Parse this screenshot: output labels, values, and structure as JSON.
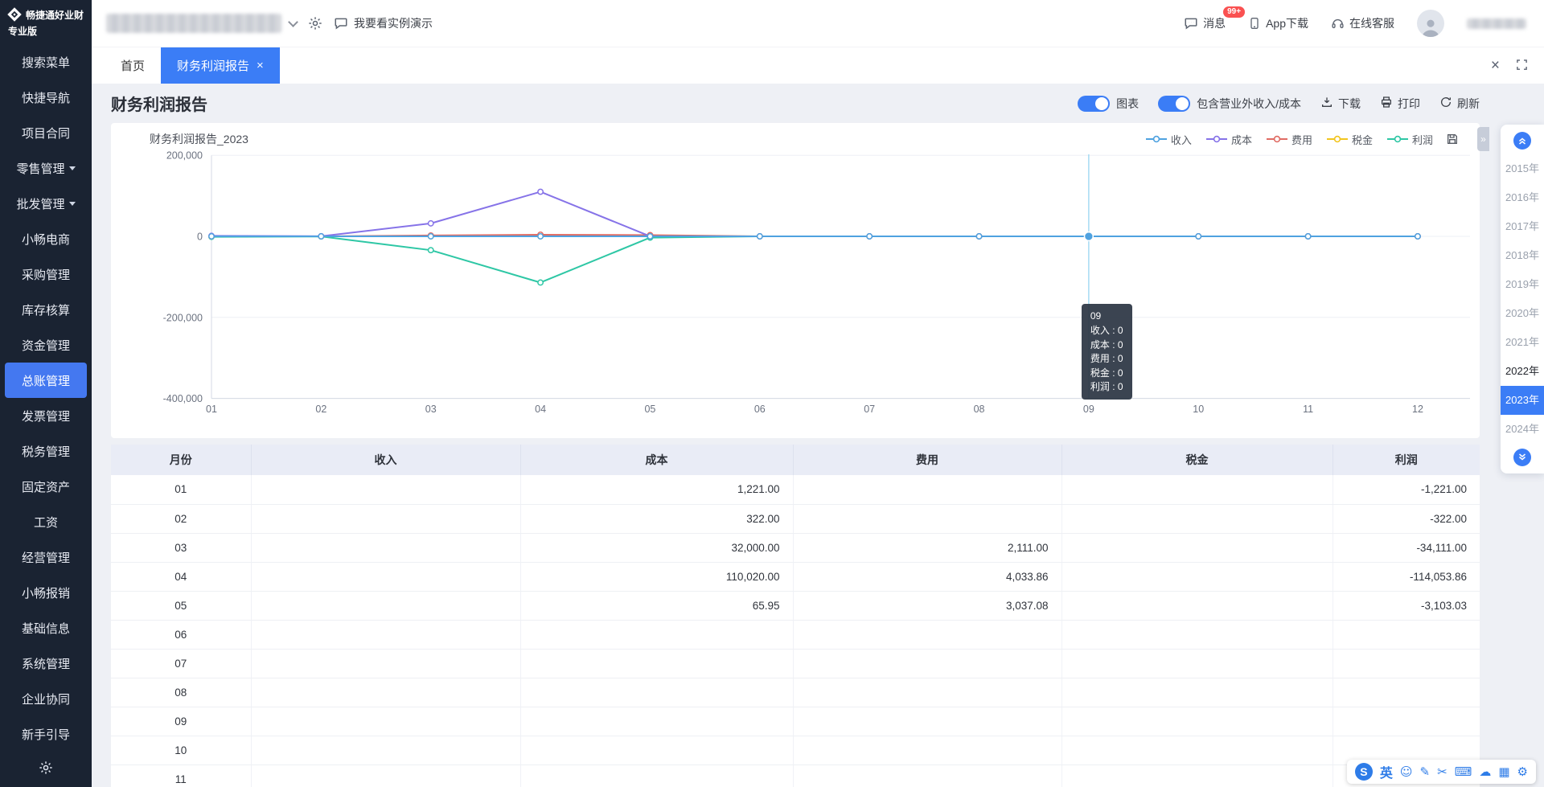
{
  "colors": {
    "accent": "#3b7df6",
    "sidebar_bg": "#1a2332",
    "sidebar_active": "#4478f0",
    "badge_red": "#fa5151",
    "tooltip_bg": "#2c3644"
  },
  "logo": {
    "line1": "畅捷通好业财",
    "line2": "专业版"
  },
  "sidebar": {
    "items": [
      {
        "id": "search-menu",
        "label": "搜索菜单"
      },
      {
        "id": "quick-nav",
        "label": "快捷导航"
      },
      {
        "id": "project-contract",
        "label": "项目合同"
      },
      {
        "id": "retail-mgmt",
        "label": "零售管理",
        "arrow": true
      },
      {
        "id": "wholesale-mgmt",
        "label": "批发管理",
        "arrow": true
      },
      {
        "id": "xiaochang-ecommerce",
        "label": "小畅电商"
      },
      {
        "id": "purchase-mgmt",
        "label": "采购管理"
      },
      {
        "id": "inventory-accounting",
        "label": "库存核算"
      },
      {
        "id": "funds-mgmt",
        "label": "资金管理"
      },
      {
        "id": "general-ledger",
        "label": "总账管理",
        "active": true
      },
      {
        "id": "invoice-mgmt",
        "label": "发票管理"
      },
      {
        "id": "tax-mgmt",
        "label": "税务管理"
      },
      {
        "id": "fixed-assets",
        "label": "固定资产"
      },
      {
        "id": "payroll",
        "label": "工资"
      },
      {
        "id": "operations-mgmt",
        "label": "经营管理"
      },
      {
        "id": "xiaochang-expense",
        "label": "小畅报销"
      },
      {
        "id": "basic-info",
        "label": "基础信息"
      },
      {
        "id": "system-mgmt",
        "label": "系统管理"
      },
      {
        "id": "enterprise-collab",
        "label": "企业协同"
      },
      {
        "id": "beginner-guide",
        "label": "新手引导"
      }
    ]
  },
  "topbar": {
    "demo_label": "我要看实例演示",
    "messages_label": "消息",
    "messages_badge": "99+",
    "app_download_label": "App下载",
    "online_support_label": "在线客服"
  },
  "tabs": {
    "close_glyph": "×",
    "items": [
      {
        "id": "home",
        "label": "首页"
      },
      {
        "id": "profit-report",
        "label": "财务利润报告",
        "active": true,
        "closable": true
      }
    ]
  },
  "page": {
    "title": "财务利润报告",
    "chart_toggle_label": "图表",
    "include_toggle_label": "包含营业外收入/成本",
    "download_label": "下载",
    "print_label": "打印",
    "refresh_label": "刷新"
  },
  "chart_data": {
    "type": "line",
    "title": "财务利润报告_2023",
    "x": [
      "01",
      "02",
      "03",
      "04",
      "05",
      "06",
      "07",
      "08",
      "09",
      "10",
      "11",
      "12"
    ],
    "ylim": [
      -400000,
      200000
    ],
    "ytick_values": [
      200000,
      0,
      -200000,
      -400000
    ],
    "ytick_labels": [
      "200,000",
      "0",
      "-200,000",
      "-400,000"
    ],
    "grid": true,
    "legend_position": "top-right",
    "series": [
      {
        "name": "收入",
        "color": "#4fa2e0",
        "values": [
          0,
          0,
          0,
          0,
          0,
          0,
          0,
          0,
          0,
          0,
          0,
          0
        ]
      },
      {
        "name": "成本",
        "color": "#8673e8",
        "values": [
          1221,
          322,
          32000,
          110020,
          65.95,
          0,
          0,
          0,
          0,
          0,
          0,
          0
        ]
      },
      {
        "name": "费用",
        "color": "#e06c64",
        "values": [
          0,
          0,
          2111,
          4033.86,
          3037.08,
          0,
          0,
          0,
          0,
          0,
          0,
          0
        ]
      },
      {
        "name": "税金",
        "color": "#f2c51f",
        "values": [
          0,
          0,
          0,
          0,
          0,
          0,
          0,
          0,
          0,
          0,
          0,
          0
        ]
      },
      {
        "name": "利润",
        "color": "#2ec7a5",
        "values": [
          -1221,
          -322,
          -34111,
          -114053.86,
          -3103.03,
          0,
          0,
          0,
          0,
          0,
          0,
          0
        ]
      }
    ],
    "highlight": {
      "x_index": 8,
      "label": "09",
      "lines": [
        "收入 : 0",
        "成本 : 0",
        "费用 : 0",
        "税金 : 0",
        "利润 : 0"
      ]
    }
  },
  "table": {
    "columns": [
      "月份",
      "收入",
      "成本",
      "费用",
      "税金",
      "利润"
    ],
    "rows": [
      [
        "01",
        "",
        "1,221.00",
        "",
        "",
        "-1,221.00"
      ],
      [
        "02",
        "",
        "322.00",
        "",
        "",
        "-322.00"
      ],
      [
        "03",
        "",
        "32,000.00",
        "2,111.00",
        "",
        "-34,111.00"
      ],
      [
        "04",
        "",
        "110,020.00",
        "4,033.86",
        "",
        "-114,053.86"
      ],
      [
        "05",
        "",
        "65.95",
        "3,037.08",
        "",
        "-3,103.03"
      ],
      [
        "06",
        "",
        "",
        "",
        "",
        ""
      ],
      [
        "07",
        "",
        "",
        "",
        "",
        ""
      ],
      [
        "08",
        "",
        "",
        "",
        "",
        ""
      ],
      [
        "09",
        "",
        "",
        "",
        "",
        ""
      ],
      [
        "10",
        "",
        "",
        "",
        "",
        ""
      ],
      [
        "11",
        "",
        "",
        "",
        "",
        ""
      ]
    ]
  },
  "year_panel": {
    "collapse_icon": "»",
    "years": [
      {
        "label": "2015年",
        "state": "normal"
      },
      {
        "label": "2016年",
        "state": "normal"
      },
      {
        "label": "2017年",
        "state": "normal"
      },
      {
        "label": "2018年",
        "state": "normal"
      },
      {
        "label": "2019年",
        "state": "normal"
      },
      {
        "label": "2020年",
        "state": "normal"
      },
      {
        "label": "2021年",
        "state": "normal"
      },
      {
        "label": "2022年",
        "state": "dark"
      },
      {
        "label": "2023年",
        "state": "active"
      },
      {
        "label": "2024年",
        "state": "normal"
      }
    ]
  },
  "ime": {
    "logo_glyph": "S",
    "lang": "英",
    "icons": [
      {
        "name": "emoji",
        "glyph": "☺"
      },
      {
        "name": "handwriting",
        "glyph": "✎"
      },
      {
        "name": "clip",
        "glyph": "✂"
      },
      {
        "name": "keyboard",
        "glyph": "⌨"
      },
      {
        "name": "cloud",
        "glyph": "☁"
      },
      {
        "name": "skin-grid",
        "glyph": "▦"
      },
      {
        "name": "settings",
        "glyph": "⚙"
      }
    ]
  }
}
